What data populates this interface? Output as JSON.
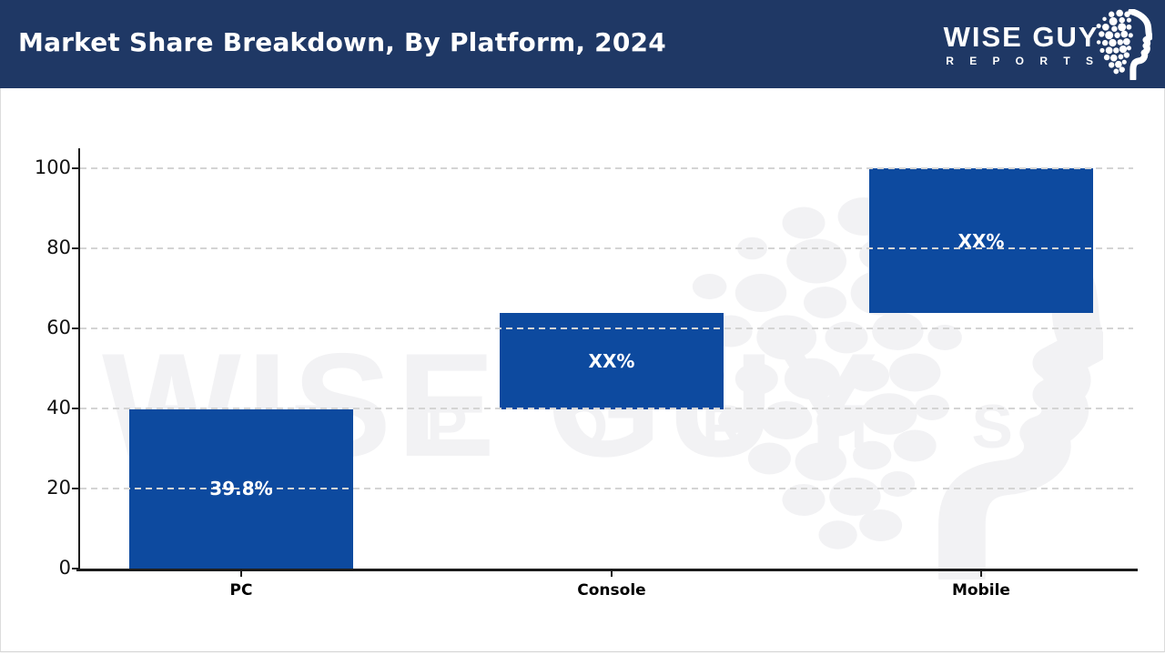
{
  "header": {
    "title": "Market Share Breakdown, By Platform, 2024",
    "bg_color": "#1f3865",
    "brand": {
      "line1": "WISE GUY",
      "line2": "R E P O R T S"
    }
  },
  "watermark": {
    "line1": "WISE GUY",
    "line2": "R E P O R T S"
  },
  "chart_data": {
    "type": "bar",
    "subtype": "waterfall",
    "title": "Market Share Breakdown, By Platform, 2024",
    "categories": [
      "PC",
      "Console",
      "Mobile"
    ],
    "segments": [
      {
        "category": "PC",
        "start": 0,
        "end": 39.8,
        "label": "39.8%"
      },
      {
        "category": "Console",
        "start": 39.8,
        "end": 63.8,
        "label": "XX%"
      },
      {
        "category": "Mobile",
        "start": 63.8,
        "end": 100,
        "label": "XX%"
      }
    ],
    "ylim": [
      0,
      100
    ],
    "yticks": [
      0,
      20,
      40,
      60,
      80,
      100
    ],
    "xlabel": "",
    "ylabel": "",
    "grid": "dashed-horizontal",
    "legend": "none",
    "bar_color": "#0d4a9f",
    "label_color": "#ffffff",
    "axis_color": "#1c1c1c",
    "gridline_color": "#d4d4d4"
  }
}
